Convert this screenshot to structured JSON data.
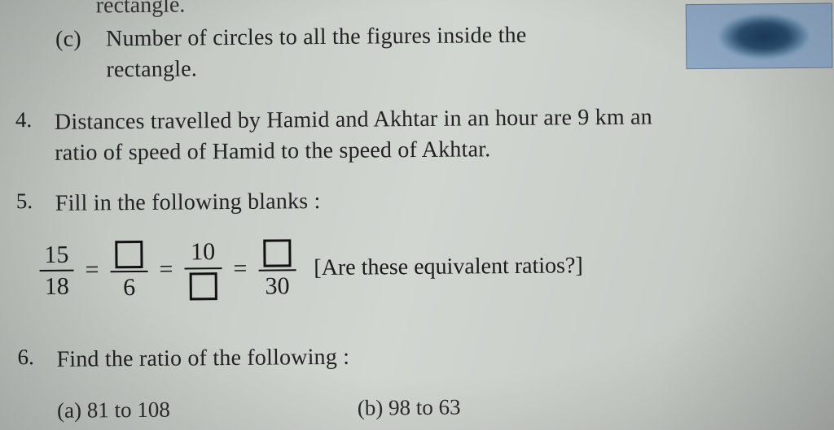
{
  "partial_top": "rectangle.",
  "item_c": {
    "marker": "(c)",
    "text_line1": "Number of circles to all the figures inside the",
    "text_line2": "rectangle."
  },
  "item_4": {
    "marker": "4.",
    "text_line1": "Distances travelled by Hamid and Akhtar in an hour are 9 km an",
    "text_line2": "ratio of speed of Hamid to the speed of Akhtar."
  },
  "item_5": {
    "marker": "5.",
    "text": "Fill in the following blanks :"
  },
  "equation": {
    "f1_num": "15",
    "f1_den": "18",
    "eq1": "=",
    "f2_den": "6",
    "eq2": "=",
    "f3_num": "10",
    "eq3": "=",
    "f4_den": "30",
    "note": "[Are these equivalent ratios?]"
  },
  "item_6": {
    "marker": "6.",
    "text": "Find the ratio of the following :"
  },
  "partial_bottom": {
    "left": "(a)  81 to 108",
    "right": "(b)      98 to 63"
  }
}
